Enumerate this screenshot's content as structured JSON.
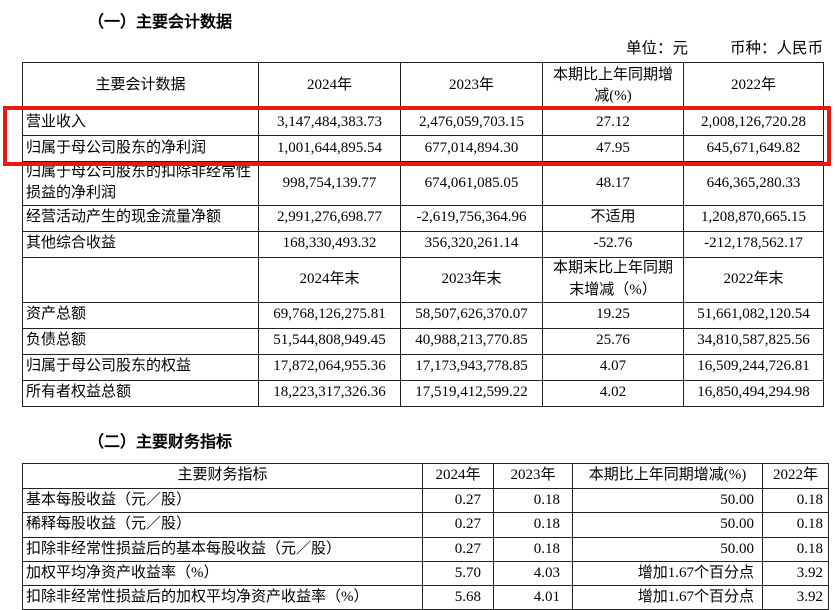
{
  "page": {
    "section1_title": "（一）主要会计数据",
    "unit_label": "单位：元",
    "currency_label": "币种：人民币",
    "section2_title": "（二）主要财务指标"
  },
  "colors": {
    "highlight_border": "#e8190f"
  },
  "accounting_table": {
    "header": [
      "主要会计数据",
      "2024年",
      "2023年",
      "本期比上年同期增减(%)",
      "2022年"
    ],
    "rows": [
      {
        "label": "营业收入",
        "y2024": "3,147,484,383.73",
        "y2023": "2,476,059,703.15",
        "change": "27.12",
        "y2022": "2,008,126,720.28",
        "highlighted": true
      },
      {
        "label": "归属于母公司股东的净利润",
        "y2024": "1,001,644,895.54",
        "y2023": "677,014,894.30",
        "change": "47.95",
        "y2022": "645,671,649.82",
        "highlighted": true
      },
      {
        "label": "归属于母公司股东的扣除非经常性损益的净利润",
        "y2024": "998,754,139.77",
        "y2023": "674,061,085.05",
        "change": "48.17",
        "y2022": "646,365,280.33",
        "highlighted": false
      },
      {
        "label": "经营活动产生的现金流量净额",
        "y2024": "2,991,276,698.77",
        "y2023": "-2,619,756,364.96",
        "change": "不适用",
        "y2022": "1,208,870,665.15",
        "highlighted": false
      },
      {
        "label": "其他综合收益",
        "y2024": "168,330,493.32",
        "y2023": "356,320,261.14",
        "change": "-52.76",
        "y2022": "-212,178,562.17",
        "highlighted": false
      }
    ],
    "mid_header": [
      "",
      "2024年末",
      "2023年末",
      "本期末比上年同期末增减（%）",
      "2022年末"
    ],
    "rows2": [
      {
        "label": "资产总额",
        "y2024": "69,768,126,275.81",
        "y2023": "58,507,626,370.07",
        "change": "19.25",
        "y2022": "51,661,082,120.54",
        "highlighted": false
      },
      {
        "label": "负债总额",
        "y2024": "51,544,808,949.45",
        "y2023": "40,988,213,770.85",
        "change": "25.76",
        "y2022": "34,810,587,825.56",
        "highlighted": false
      },
      {
        "label": "归属于母公司股东的权益",
        "y2024": "17,872,064,955.36",
        "y2023": "17,173,943,778.85",
        "change": "4.07",
        "y2022": "16,509,244,726.81",
        "highlighted": false
      },
      {
        "label": "所有者权益总额",
        "y2024": "18,223,317,326.36",
        "y2023": "17,519,412,599.22",
        "change": "4.02",
        "y2022": "16,850,494,294.98",
        "highlighted": false
      }
    ]
  },
  "financial_table": {
    "header": [
      "主要财务指标",
      "2024年",
      "2023年",
      "本期比上年同期增减(%)",
      "2022年"
    ],
    "rows": [
      {
        "label": "基本每股收益（元／股）",
        "y2024": "0.27",
        "y2023": "0.18",
        "change": "50.00",
        "y2022": "0.18"
      },
      {
        "label": "稀释每股收益（元／股）",
        "y2024": "0.27",
        "y2023": "0.18",
        "change": "50.00",
        "y2022": "0.18"
      },
      {
        "label": "扣除非经常性损益后的基本每股收益（元／股）",
        "y2024": "0.27",
        "y2023": "0.18",
        "change": "50.00",
        "y2022": "0.18"
      },
      {
        "label": "加权平均净资产收益率（%）",
        "y2024": "5.70",
        "y2023": "4.03",
        "change": "增加1.67个百分点",
        "y2022": "3.92"
      },
      {
        "label": "扣除非经常性损益后的加权平均净资产收益率（%）",
        "y2024": "5.68",
        "y2023": "4.01",
        "change": "增加1.67个百分点",
        "y2022": "3.92"
      }
    ]
  }
}
